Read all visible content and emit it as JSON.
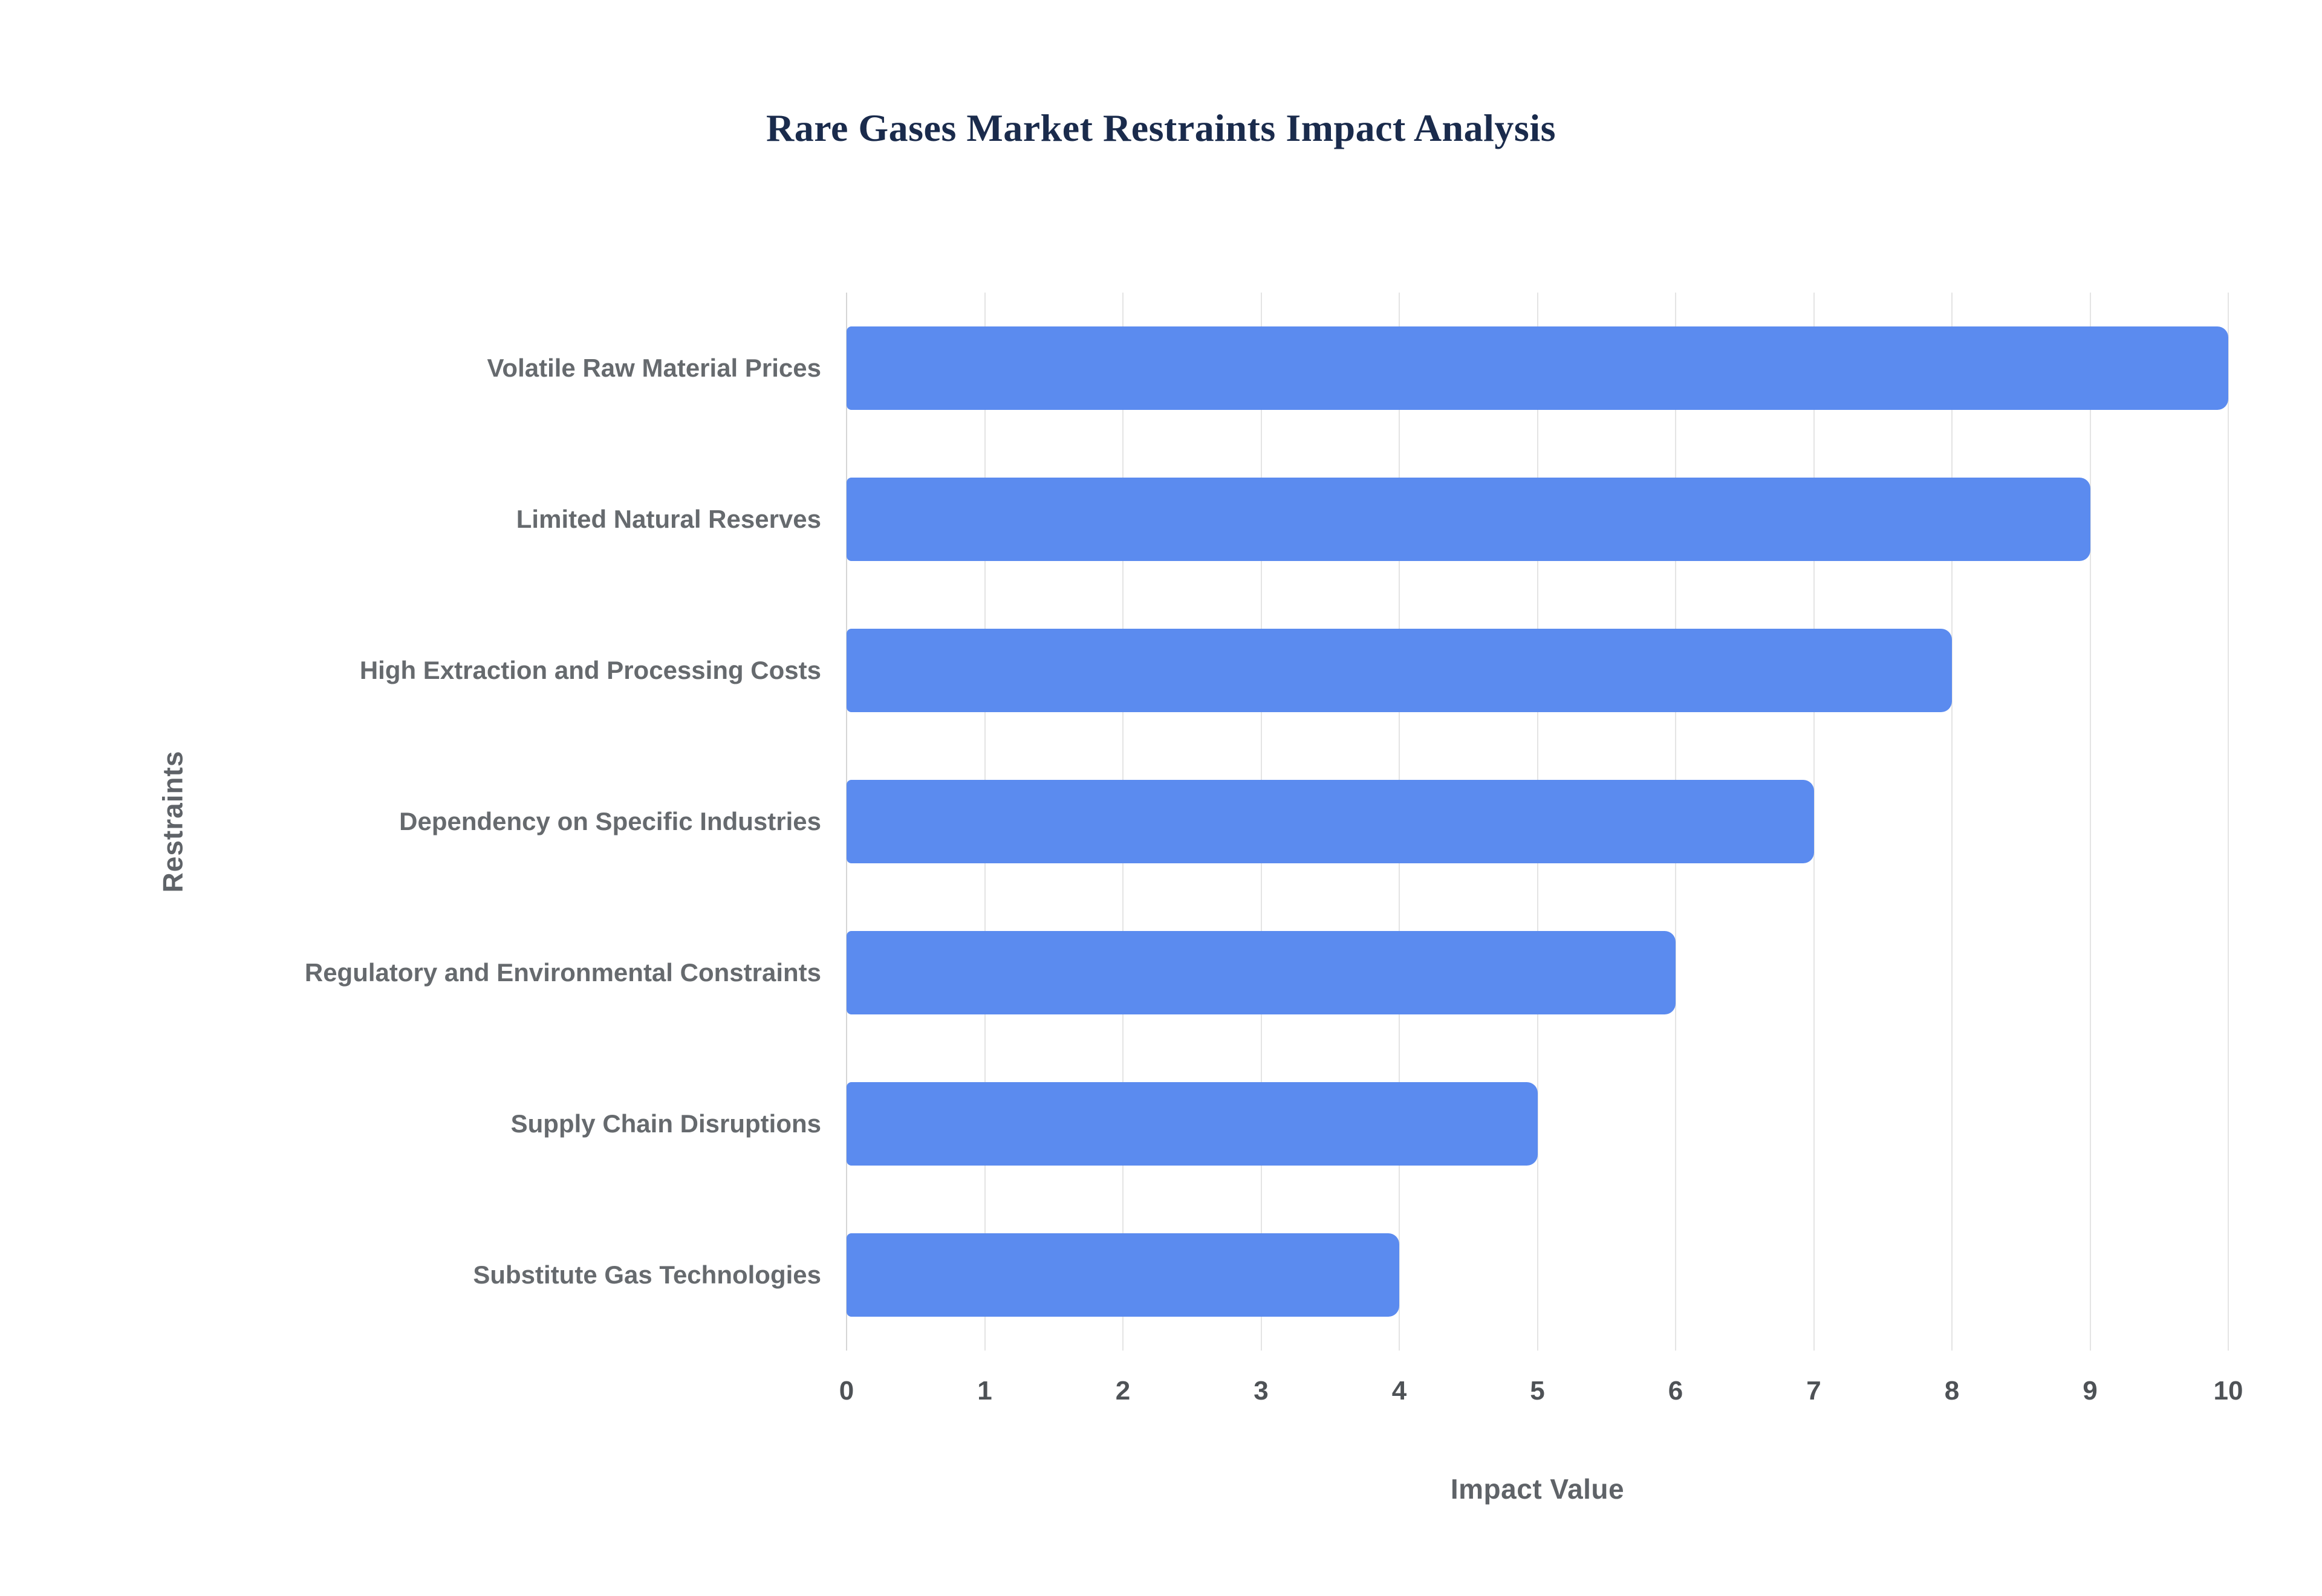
{
  "chart": {
    "title": "Rare Gases Market Restraints Impact Analysis",
    "xlabel": "Impact Value",
    "ylabel": "Restraints"
  },
  "chart_data": {
    "type": "bar",
    "orientation": "horizontal",
    "title": "Rare Gases Market Restraints Impact Analysis",
    "xlabel": "Impact Value",
    "ylabel": "Restraints",
    "categories": [
      "Volatile Raw Material Prices",
      "Limited Natural Reserves",
      "High Extraction and Processing Costs",
      "Dependency on Specific Industries",
      "Regulatory and Environmental Constraints",
      "Supply Chain Disruptions",
      "Substitute Gas Technologies"
    ],
    "values": [
      10,
      9,
      8,
      7,
      6,
      5,
      4
    ],
    "xlim": [
      0,
      10
    ],
    "xticks": [
      0,
      1,
      2,
      3,
      4,
      5,
      6,
      7,
      8,
      9,
      10
    ],
    "grid": true,
    "legend": "none",
    "bar_color": "#5b8bef",
    "gridline_color": "#e4e4e4",
    "title_color": "#1a2b4c",
    "label_color": "#666a6e"
  }
}
